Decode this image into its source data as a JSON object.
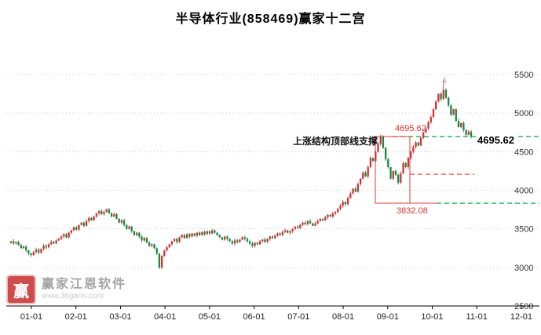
{
  "title": "半导体行业(858469)赢家十二宫",
  "watermark": {
    "logo_text": "赢",
    "brand": "赢家江恩软件",
    "url": "www.36gann.com"
  },
  "annotations": {
    "support_text": "上涨结构顶部线支撑",
    "level_top_label": "4695.62",
    "current_price_label": "4695.62",
    "level_bottom_label": "3832.08",
    "peak_marker": "↓"
  },
  "colors": {
    "up": "#cf3333",
    "down": "#128a42",
    "level_green": "#00a843",
    "red_line": "#e53935",
    "grid": "#c9c9c9",
    "axis": "#000000",
    "tick_text": "#333333"
  },
  "chart_data": {
    "type": "candlestick",
    "title": "半导体行业(858469)赢家十二宫",
    "x_ticks": [
      "01-01",
      "02-01",
      "03-01",
      "04-01",
      "05-01",
      "06-01",
      "07-01",
      "08-01",
      "09-01",
      "10-01",
      "11-01",
      "12-01"
    ],
    "y_ticks": [
      2500,
      3000,
      3500,
      4000,
      4500,
      5000,
      5500
    ],
    "ylim": [
      2500,
      5500
    ],
    "grid": true,
    "last_price": 4695.62,
    "key_levels": {
      "top": 4695.62,
      "bottom": 3832.08,
      "mid": 4208
    },
    "closes": [
      3340,
      3310,
      3330,
      3290,
      3250,
      3270,
      3220,
      3180,
      3160,
      3200,
      3230,
      3190,
      3240,
      3280,
      3260,
      3300,
      3330,
      3310,
      3350,
      3370,
      3400,
      3430,
      3390,
      3450,
      3480,
      3520,
      3490,
      3550,
      3580,
      3540,
      3600,
      3640,
      3610,
      3660,
      3700,
      3730,
      3690,
      3720,
      3750,
      3700,
      3660,
      3690,
      3630,
      3580,
      3610,
      3550,
      3500,
      3530,
      3470,
      3420,
      3450,
      3400,
      3350,
      3380,
      3320,
      3280,
      3300,
      3250,
      3180,
      3000,
      3150,
      3220,
      3260,
      3300,
      3340,
      3370,
      3330,
      3390,
      3420,
      3380,
      3430,
      3400,
      3440,
      3410,
      3450,
      3420,
      3460,
      3430,
      3470,
      3440,
      3480,
      3450,
      3420,
      3390,
      3360,
      3400,
      3370,
      3340,
      3310,
      3350,
      3330,
      3360,
      3390,
      3370,
      3340,
      3310,
      3280,
      3320,
      3300,
      3340,
      3360,
      3330,
      3370,
      3400,
      3380,
      3410,
      3440,
      3420,
      3460,
      3480,
      3450,
      3470,
      3500,
      3530,
      3510,
      3550,
      3580,
      3560,
      3600,
      3570,
      3540,
      3570,
      3600,
      3630,
      3610,
      3650,
      3680,
      3660,
      3700,
      3720,
      3760,
      3800,
      3850,
      3820,
      3900,
      3960,
      4020,
      3980,
      4080,
      4150,
      4230,
      4180,
      4300,
      4420,
      4380,
      4500,
      4600,
      4695.62,
      4550,
      4400,
      4300,
      4150,
      4250,
      4200,
      4100,
      4220,
      4350,
      4300,
      4420,
      4500,
      4560,
      4620,
      4580,
      4680,
      4750,
      4800,
      4880,
      4950,
      5050,
      5150,
      5250,
      5180,
      5300,
      5200,
      5100,
      4980,
      5050,
      4900,
      4820,
      4870,
      4780,
      4720,
      4760,
      4695.62
    ]
  }
}
